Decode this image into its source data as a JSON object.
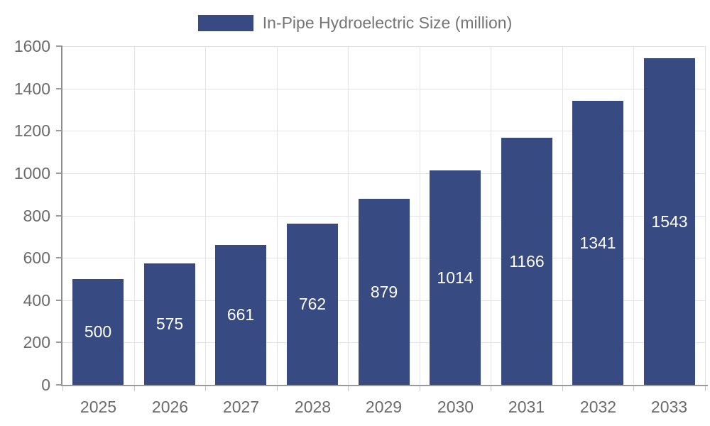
{
  "legend": {
    "label": "In-Pipe Hydroelectric Size (million)"
  },
  "colors": {
    "bar": "#384A82",
    "legend_text": "#757575",
    "axis_text": "#6b6b6b",
    "grid": "#e2e3ea",
    "axis_line": "#9a9a9a",
    "value_label": "#ffffff"
  },
  "chart_data": {
    "type": "bar",
    "title": "In-Pipe Hydroelectric Size (million)",
    "categories": [
      "2025",
      "2026",
      "2027",
      "2028",
      "2029",
      "2030",
      "2031",
      "2032",
      "2033"
    ],
    "values": [
      500,
      575,
      661,
      762,
      879,
      1014,
      1166,
      1341,
      1543
    ],
    "xlabel": "",
    "ylabel": "",
    "ylim": [
      0,
      1600
    ],
    "ytick_step": 200,
    "grid": "both",
    "legend_position": "top-center",
    "value_labels": "inside-center-white"
  }
}
